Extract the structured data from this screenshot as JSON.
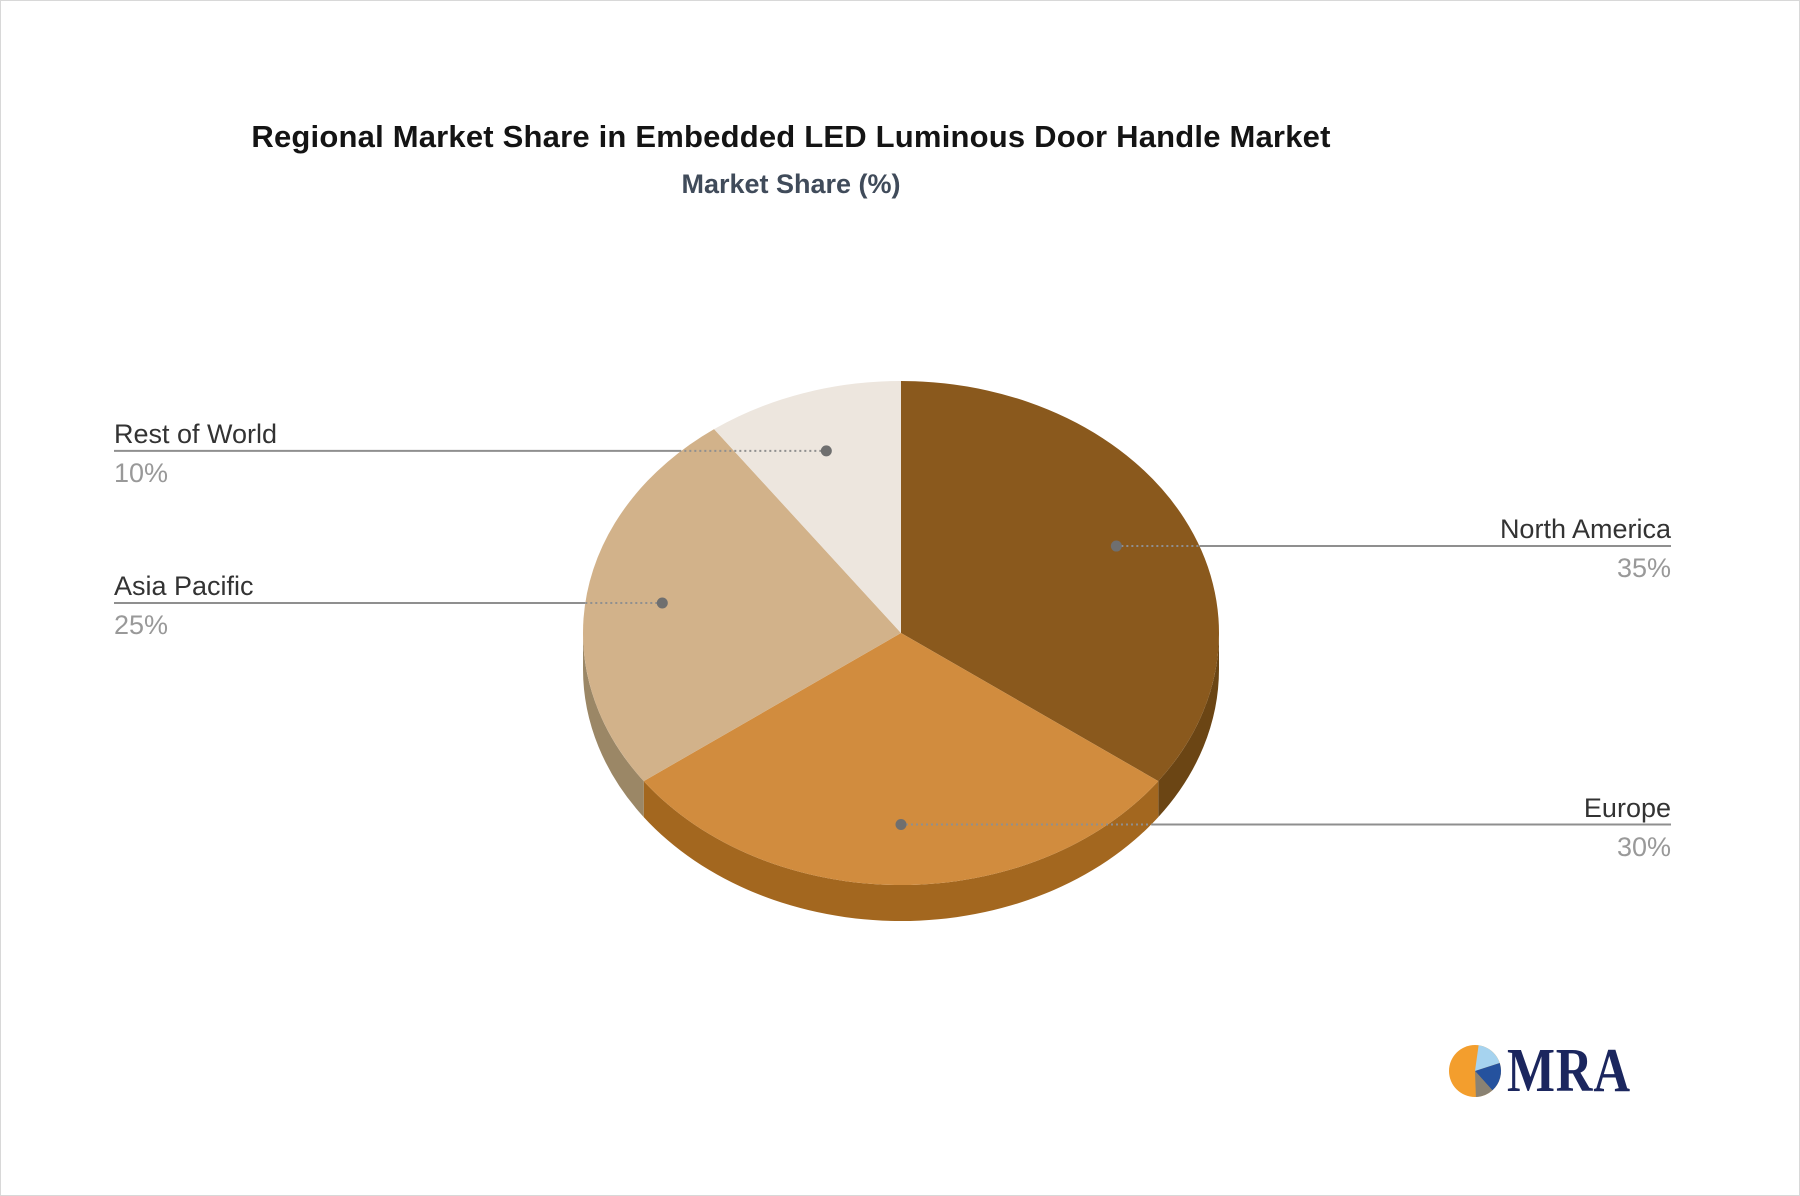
{
  "header": {
    "title": "Regional Market Share in Embedded LED Luminous Door Handle Market",
    "subtitle": "Market Share (%)",
    "subtitle_color": "#404B5A"
  },
  "chart_data": {
    "type": "pie",
    "style": "3d",
    "title": "Regional Market Share in Embedded LED Luminous Door Handle Market",
    "subtitle": "Market Share (%)",
    "unit": "%",
    "start_angle_deg": 0,
    "direction": "clockwise",
    "legend_position": "none",
    "label_style": "callout-lines",
    "categories": [
      "North America",
      "Europe",
      "Asia Pacific",
      "Rest of World"
    ],
    "values": [
      35,
      30,
      25,
      10
    ],
    "slices": [
      {
        "label": "North America",
        "value": 35,
        "pct_text": "35%",
        "color": "#8A591D",
        "side_color": "#6B4514",
        "callout_side": "right"
      },
      {
        "label": "Europe",
        "value": 30,
        "pct_text": "30%",
        "color": "#D18C3E",
        "side_color": "#A3671F",
        "callout_side": "right"
      },
      {
        "label": "Asia Pacific",
        "value": 25,
        "pct_text": "25%",
        "color": "#D2B28A",
        "side_color": "#9B8766",
        "callout_side": "left"
      },
      {
        "label": "Rest of World",
        "value": 10,
        "pct_text": "10%",
        "color": "#EDE6DE",
        "side_color": "#C9BFB2",
        "callout_side": "left"
      }
    ],
    "callout_line_color": "#8f8f8f",
    "callout_dot_color": "#6f6f6f",
    "label_text_color": "#333333",
    "pct_text_color": "#999999"
  },
  "logo": {
    "text": "MRA",
    "text_color": "#1B265E",
    "icon": {
      "name": "mra-pie-logo-icon",
      "orange": "#F39E2D",
      "light_blue": "#A6D3EF",
      "blue": "#25529E",
      "gray": "#8A8273"
    }
  }
}
